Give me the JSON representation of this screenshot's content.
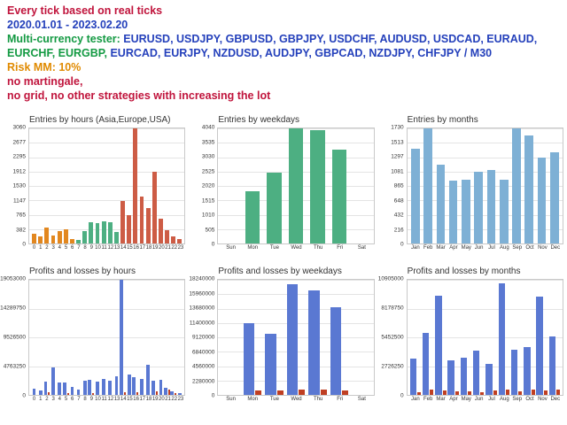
{
  "header": {
    "lines": [
      {
        "segments": [
          {
            "text": "Every tick based on real ticks",
            "color": "#c0143c"
          }
        ]
      },
      {
        "segments": [
          {
            "text": "2020.01.01 - 2023.02.20",
            "color": "#2440bb"
          }
        ]
      },
      {
        "segments": [
          {
            "text": "Multi-currency tester:",
            "color": "#149a43"
          },
          {
            "text": "EURUSD, USDJPY, GBPUSD, GBPJPY, USDCHF, AUDUSD, USDCAD, EURAUD,",
            "color": "#2440bb"
          }
        ]
      },
      {
        "segments": [
          {
            "text": "EURCHF, EURGBP,",
            "color": "#149a43"
          },
          {
            "text": "EURCAD, EURJPY, NZDUSD, AUDJPY, GBPCAD, NZDJPY, CHFJPY / M30",
            "color": "#2440bb"
          }
        ]
      },
      {
        "segments": [
          {
            "text": "Risk MM: 10%",
            "color": "#e08a00"
          }
        ]
      },
      {
        "segments": [
          {
            "text": "no martingale,",
            "color": "#c0143c"
          }
        ]
      },
      {
        "segments": [
          {
            "text": "no grid, no other strategies with increasing the lot",
            "color": "#c0143c"
          }
        ]
      }
    ]
  },
  "chart_data": [
    {
      "id": "entries-by-hours",
      "type": "bar",
      "title": "Entries by hours (Asia,Europe,USA)",
      "categories": [
        "0",
        "1",
        "2",
        "3",
        "4",
        "5",
        "6",
        "7",
        "8",
        "9",
        "10",
        "11",
        "12",
        "13",
        "14",
        "15",
        "16",
        "17",
        "18",
        "19",
        "20",
        "21",
        "22",
        "23"
      ],
      "values": [
        260,
        190,
        430,
        210,
        340,
        380,
        120,
        90,
        330,
        560,
        540,
        580,
        560,
        300,
        1140,
        760,
        3060,
        1250,
        950,
        1900,
        660,
        350,
        200,
        110
      ],
      "bar_colors": [
        "#e2871f",
        "#e2871f",
        "#e2871f",
        "#e2871f",
        "#e2871f",
        "#e2871f",
        "#e2871f",
        "#4daf82",
        "#4daf82",
        "#4daf82",
        "#4daf82",
        "#4daf82",
        "#4daf82",
        "#4daf82",
        "#cd5c45",
        "#cd5c45",
        "#cd5c45",
        "#cd5c45",
        "#cd5c45",
        "#cd5c45",
        "#cd5c45",
        "#cd5c45",
        "#cd5c45",
        "#cd5c45"
      ],
      "yticks": [
        3060,
        2677,
        2295,
        1912,
        1530,
        1147,
        765,
        382,
        0
      ],
      "ylim": [
        0,
        3060
      ],
      "legend_note": "orange=Asia, green=Europe, red=USA"
    },
    {
      "id": "entries-by-weekdays",
      "type": "bar",
      "title": "Entries by weekdays",
      "categories": [
        "Sun",
        "Mon",
        "Tue",
        "Wed",
        "Thu",
        "Fri",
        "Sat"
      ],
      "values": [
        0,
        1830,
        2480,
        4040,
        3980,
        3280,
        0
      ],
      "color": "#4daf82",
      "yticks": [
        4040,
        3535,
        3030,
        2525,
        2020,
        1515,
        1010,
        505,
        0
      ],
      "ylim": [
        0,
        4040
      ]
    },
    {
      "id": "entries-by-months",
      "type": "bar",
      "title": "Entries by months",
      "categories": [
        "Jan",
        "Feb",
        "Mar",
        "Apr",
        "May",
        "Jun",
        "Jul",
        "Aug",
        "Sep",
        "Oct",
        "Nov",
        "Dec"
      ],
      "values": [
        1420,
        1730,
        1190,
        945,
        965,
        1080,
        1100,
        965,
        1730,
        1620,
        1295,
        1365
      ],
      "color": "#7eb0d5",
      "yticks": [
        1730,
        1513,
        1297,
        1081,
        865,
        648,
        432,
        216,
        0
      ],
      "ylim": [
        0,
        1730
      ]
    },
    {
      "id": "profits-losses-by-hours",
      "type": "bar",
      "title": "Profits and losses by hours",
      "categories": [
        "0",
        "1",
        "2",
        "3",
        "4",
        "5",
        "6",
        "7",
        "8",
        "9",
        "10",
        "11",
        "12",
        "13",
        "14",
        "15",
        "16",
        "17",
        "18",
        "19",
        "20",
        "21",
        "22",
        "23"
      ],
      "series": [
        {
          "name": "profits",
          "color": "#5a78d2",
          "values": [
            1100000,
            700000,
            2200000,
            4600000,
            2000000,
            2100000,
            1300000,
            900000,
            2300000,
            2500000,
            2200000,
            2600000,
            2400000,
            3100000,
            19000000,
            3300000,
            2900000,
            2700000,
            5000000,
            2300000,
            2500000,
            1200000,
            600000,
            300000
          ]
        },
        {
          "name": "losses",
          "color": "#bf3f23",
          "values": [
            0,
            0,
            400000,
            0,
            0,
            300000,
            0,
            0,
            0,
            350000,
            0,
            0,
            0,
            0,
            500000,
            0,
            400000,
            0,
            0,
            600000,
            0,
            900000,
            300000,
            0
          ]
        }
      ],
      "yticks": [
        19053000,
        14289750,
        9526500,
        4763250,
        0
      ],
      "ylim": [
        0,
        19053000
      ]
    },
    {
      "id": "profits-losses-by-weekdays",
      "type": "bar",
      "title": "Profits and losses by weekdays",
      "categories": [
        "Sun",
        "Mon",
        "Tue",
        "Wed",
        "Thu",
        "Fri",
        "Sat"
      ],
      "series": [
        {
          "name": "profits",
          "color": "#5a78d2",
          "values": [
            0,
            11300000,
            9700000,
            17600000,
            16600000,
            13900000,
            0
          ]
        },
        {
          "name": "losses",
          "color": "#bf3f23",
          "values": [
            0,
            750000,
            650000,
            900000,
            800000,
            700000,
            0
          ]
        }
      ],
      "yticks": [
        18240000,
        15960000,
        13680000,
        11400000,
        9120000,
        6840000,
        4560000,
        2280000,
        0
      ],
      "ylim": [
        0,
        18240000
      ]
    },
    {
      "id": "profits-losses-by-months",
      "type": "bar",
      "title": "Profits and losses by months",
      "categories": [
        "Jan",
        "Feb",
        "Mar",
        "Apr",
        "May",
        "Jun",
        "Jul",
        "Aug",
        "Sep",
        "Oct",
        "Nov",
        "Dec"
      ],
      "series": [
        {
          "name": "profits",
          "color": "#5a78d2",
          "values": [
            3400000,
            5900000,
            9400000,
            3300000,
            3500000,
            4200000,
            2900000,
            10600000,
            4300000,
            4500000,
            9300000,
            5500000
          ]
        },
        {
          "name": "losses",
          "color": "#bf3f23",
          "values": [
            280000,
            480000,
            400000,
            300000,
            330000,
            280000,
            420000,
            500000,
            330000,
            470000,
            380000,
            520000
          ]
        }
      ],
      "yticks": [
        10905000,
        8178750,
        5452500,
        2726250,
        0
      ],
      "ylim": [
        0,
        10905000
      ]
    }
  ]
}
